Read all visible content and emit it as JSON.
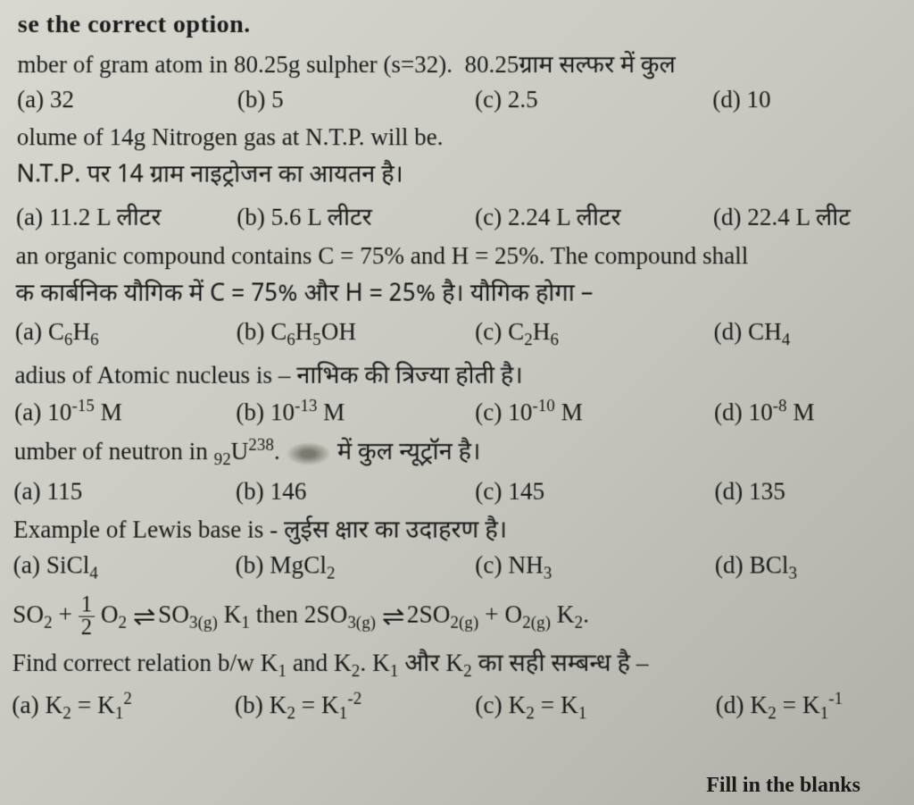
{
  "heading": "se the correct option.",
  "q1": {
    "stem_en": "mber of gram atom in 80.25g sulpher (s=32).",
    "stem_hi": "80.25ग्राम सल्फर में कुल",
    "a": "(a) 32",
    "b": "(b) 5",
    "c": "(c) 2.5",
    "d": "(d) 10"
  },
  "q2": {
    "stem_en": "olume of 14g Nitrogen gas at N.T.P. will be.",
    "stem_hi": "N.T.P. पर 14 ग्राम नाइट्रोजन का आयतन है।",
    "a": "(a) 11.2 L लीटर",
    "b": "(b) 5.6 L लीटर",
    "c": "(c) 2.24 L लीटर",
    "d": "(d) 22.4 L लीट"
  },
  "q3": {
    "stem_en": "an organic compound contains C = 75% and H = 25%. The compound shall",
    "stem_hi": "क कार्बनिक यौगिक में C = 75% और H = 25% है। यौगिक होगा –",
    "a_pre": "(a) C",
    "a_s1": "6",
    "a_mid": "H",
    "a_s2": "6",
    "b_pre": "(b) C",
    "b_s1": "6",
    "b_mid": "H",
    "b_s2": "5",
    "b_post": "OH",
    "c_pre": "(c) C",
    "c_s1": "2",
    "c_mid": "H",
    "c_s2": "6",
    "d_pre": "(d) CH",
    "d_s1": "4"
  },
  "q4": {
    "stem_en": "adius of Atomic nucleus is",
    "stem_hi": "– नाभिक की त्रिज्या होती है।",
    "a_pre": "(a) 10",
    "a_sup": "-15",
    "a_post": " M",
    "b_pre": "(b) 10",
    "b_sup": "-13",
    "b_post": " M",
    "c_pre": "(c) 10",
    "c_sup": "-10",
    "c_post": " M",
    "d_pre": "(d) 10",
    "d_sup": "-8",
    "d_post": " M"
  },
  "q5": {
    "stem_en_pre": "umber of neutron in ",
    "stem_sub": "92",
    "stem_u": "U",
    "stem_sup": "238",
    "stem_dot": ". ",
    "stem_hi": " में कुल न्यूट्रॉन है।",
    "a": "(a) 115",
    "b": "(b) 146",
    "c": "(c) 145",
    "d": "(d) 135"
  },
  "q6": {
    "stem_en": "Example of Lewis base is - ",
    "stem_hi": "लुईस क्षार का उदाहरण है।",
    "a_pre": "(a) SiCl",
    "a_s": "4",
    "b_pre": "(b) MgCl",
    "b_s": "2",
    "c_pre": "(c) NH",
    "c_s": "3",
    "d_pre": "(d) BCl",
    "d_s": "3"
  },
  "q7": {
    "eq_p1": "SO",
    "eq_s1": "2",
    "eq_plus1": " + ",
    "frac_num": "1",
    "frac_den": "2",
    "eq_o2": " O",
    "eq_s2": "2",
    "arrow1": "⇌",
    "eq_so3": " SO",
    "eq_s3": "3(g)",
    "eq_k1": " K",
    "eq_ks1": "1",
    "eq_then": " then 2SO",
    "eq_s4": "3(g)",
    "arrow2": "⇌",
    "eq_rhs": " 2SO",
    "eq_s5": "2(g)",
    "eq_plus2": " + O",
    "eq_s6": "2(g)",
    "eq_k2": " K",
    "eq_ks2": "2",
    "eq_dot": ".",
    "find_en": "Find correct relation b/w K",
    "find_s1": "1",
    "find_and": " and K",
    "find_s2": "2",
    "find_dot": ".  ",
    "find_hi_pre": "K",
    "find_hs1": "1",
    "find_hi_and": " और K",
    "find_hs2": "2",
    "find_hi": " का सही सम्बन्ध है –",
    "a_pre": "(a) K",
    "a_s1": "2",
    "a_eq": " = K",
    "a_s2": "1",
    "a_sup": "2",
    "b_pre": "(b) K",
    "b_s1": "2",
    "b_eq": " = K",
    "b_s2": "1",
    "b_sup": "-2",
    "c_pre": "(c) K",
    "c_s1": "2",
    "c_eq": " = K",
    "c_s2": "1",
    "d_pre": "(d) K",
    "d_s1": "2",
    "d_eq": " = K",
    "d_s2": "1",
    "d_sup": "-1"
  },
  "bottom": "Fill in the blanks"
}
